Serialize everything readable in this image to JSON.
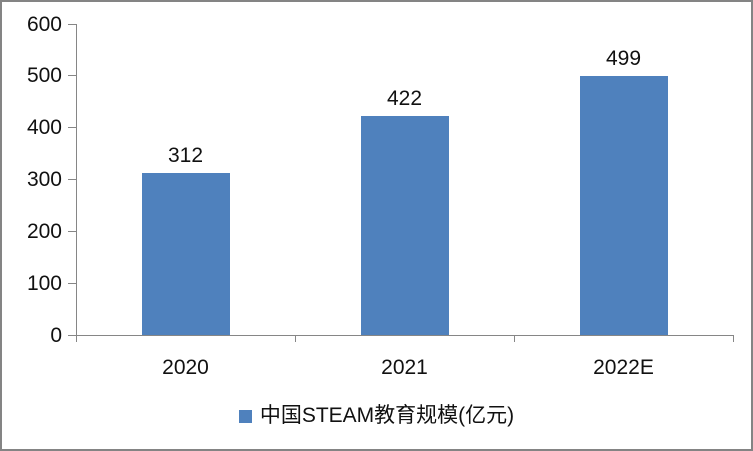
{
  "colors": {
    "bar": "#4F81BD",
    "axis": "#868686",
    "text": "#111111",
    "border": "#848484",
    "background": "#FFFFFF"
  },
  "chart_data": {
    "type": "bar",
    "title": "",
    "xlabel": "",
    "ylabel": "",
    "categories": [
      "2020",
      "2021",
      "2022E"
    ],
    "series": [
      {
        "name": "中国STEAM教育规模(亿元)",
        "values": [
          312,
          422,
          499
        ]
      }
    ],
    "values": [
      312,
      422,
      499
    ],
    "data_labels": [
      "312",
      "422",
      "499"
    ],
    "ylim": [
      0,
      600
    ],
    "yticks": [
      0,
      100,
      200,
      300,
      400,
      500,
      600
    ],
    "ytick_labels": [
      "0",
      "100",
      "200",
      "300",
      "400",
      "500",
      "600"
    ],
    "grid": false,
    "legend": {
      "position": "bottom",
      "entries": [
        "中国STEAM教育规模(亿元)"
      ]
    }
  }
}
